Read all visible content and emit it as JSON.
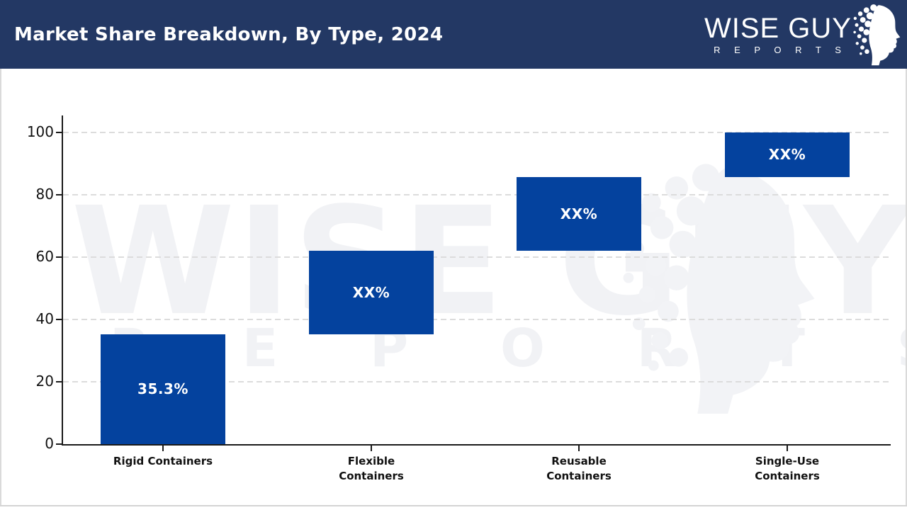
{
  "header": {
    "title": "Market Share Breakdown, By Type, 2024",
    "bg_color": "#233864",
    "logo": {
      "name": "WISE GUY",
      "subname": "R E P O R T S"
    }
  },
  "watermark": {
    "big": "WISE GUY",
    "small": "R E P O R T S"
  },
  "chart_data": {
    "type": "bar",
    "variant": "waterfall-stacked",
    "title": "Market Share Breakdown, By Type, 2024",
    "xlabel": "",
    "ylabel": "",
    "ylim": [
      0,
      100
    ],
    "yticks": [
      0,
      20,
      40,
      60,
      80,
      100
    ],
    "grid": "horizontal-dashed",
    "legend": false,
    "categories": [
      "Rigid Containers",
      "Flexible\nContainers",
      "Reusable\nContainers",
      "Single-Use\nContainers"
    ],
    "segments": [
      {
        "category": "Rigid Containers",
        "from": 0,
        "to": 35.3,
        "value": 35.3,
        "label": "35.3%"
      },
      {
        "category": "Flexible Containers",
        "from": 35.3,
        "to": 62,
        "value": 26.7,
        "label": "XX%"
      },
      {
        "category": "Reusable Containers",
        "from": 62,
        "to": 85.7,
        "value": 23.7,
        "label": "XX%"
      },
      {
        "category": "Single-Use Containers",
        "from": 85.7,
        "to": 100,
        "value": 14.3,
        "label": "XX%"
      }
    ],
    "colors": {
      "bar": "#04429e",
      "bar_label": "#ffffff",
      "axis": "#1a1a1a",
      "gridline": "#dcdcdc",
      "tick_label": "#111111"
    }
  }
}
